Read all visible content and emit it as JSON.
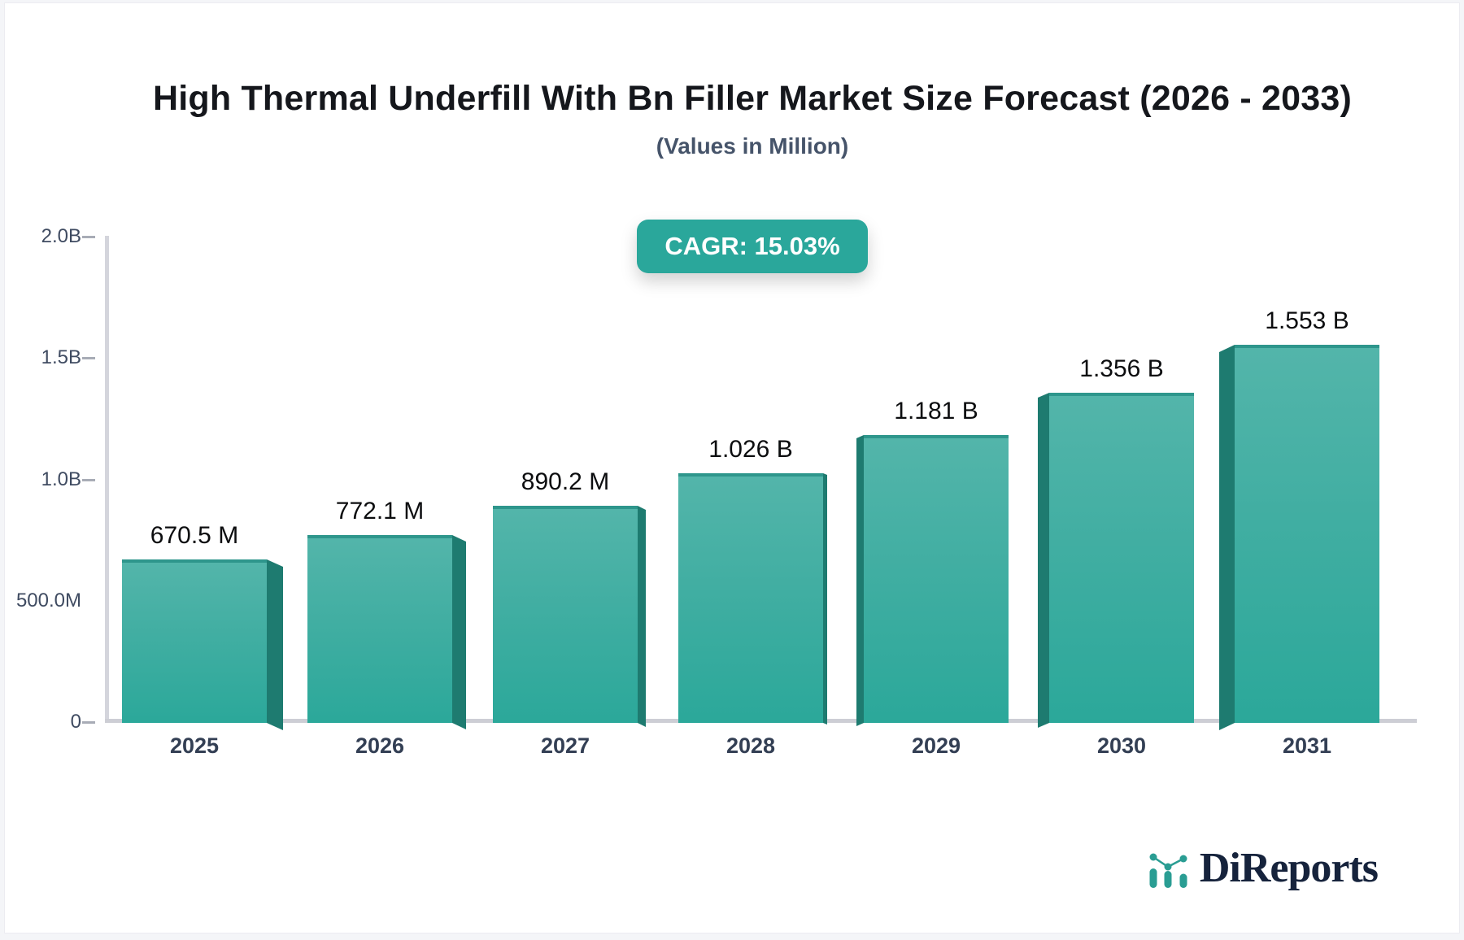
{
  "header": {
    "title": "High Thermal Underfill With Bn Filler Market Size Forecast (2026 - 2033)",
    "subtitle": "(Values in Million)",
    "cagr_badge": "CAGR: 15.03%"
  },
  "chart_data": {
    "type": "bar",
    "title": "High Thermal Underfill With Bn Filler Market Size Forecast (2026 - 2033)",
    "subtitle": "(Values in Million)",
    "cagr_percent": 15.03,
    "categories": [
      "2025",
      "2026",
      "2027",
      "2028",
      "2029",
      "2030",
      "2031"
    ],
    "values_in_millions": [
      670.5,
      772.1,
      890.2,
      1026,
      1181,
      1356,
      1553
    ],
    "value_labels": [
      "670.5 M",
      "772.1 M",
      "890.2 M",
      "1.026 B",
      "1.181 B",
      "1.356 B",
      "1.553 B"
    ],
    "xlabel": "",
    "ylabel": "",
    "ylim_millions": [
      0,
      2000
    ],
    "grid": false,
    "legend": false,
    "y_axis": {
      "ticks": [
        {
          "label": "2.0B",
          "value_millions": 2000,
          "has_dash": true
        },
        {
          "label": "1.5B",
          "value_millions": 1500,
          "has_dash": true
        },
        {
          "label": "1.0B",
          "value_millions": 1000,
          "has_dash": true
        },
        {
          "label": "500.0M",
          "value_millions": 500,
          "has_dash": false
        },
        {
          "label": "0",
          "value_millions": 0,
          "has_dash": true
        }
      ]
    },
    "bar_style": {
      "face_top_color": "#53b5aa",
      "face_bottom_color": "#2ba89a",
      "top_edge_color": "#2e968c",
      "side_color": "#1e7b70"
    }
  },
  "branding": {
    "logo_text": "DiReports",
    "logo_icon": "bar-chart-trend-icon",
    "logo_icon_color": "#2a9d93",
    "logo_text_color": "#16233c"
  },
  "colors": {
    "badge_bg": "#2aa79b",
    "badge_text": "#ffffff",
    "axis_line": "#d0d1d9",
    "tick_dash": "#a8acb6",
    "tick_label": "#3f4b61",
    "category_label": "#333f54",
    "title_text": "#15171c",
    "subtitle_text": "#46546a",
    "page_bg": "#f4f5f8",
    "card_bg": "#ffffff"
  }
}
